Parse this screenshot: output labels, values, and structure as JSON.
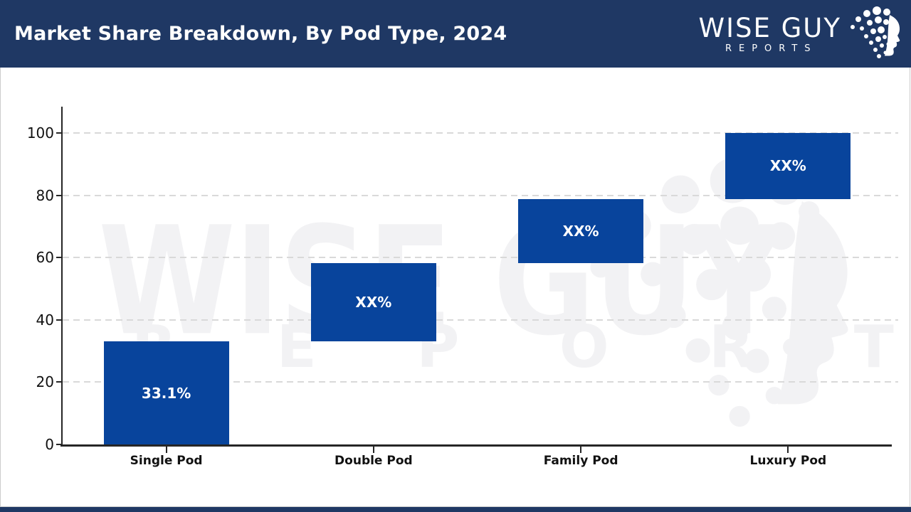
{
  "header": {
    "title": "Market Share Breakdown, By Pod Type, 2024",
    "bg_color": "#1f3864",
    "logo": {
      "line1": "WISE GUY",
      "line2": "REPORTS"
    }
  },
  "watermark": {
    "line1": "WISE GUY",
    "line2": "R E P O R T S"
  },
  "chart_data": {
    "type": "bar",
    "subtype": "waterfall",
    "title": "Market Share Breakdown, By Pod Type, 2024",
    "xlabel": "",
    "ylabel": "",
    "categories": [
      "Single Pod",
      "Double Pod",
      "Family Pod",
      "Luxury Pod"
    ],
    "segments": [
      {
        "category": "Single Pod",
        "start": 0,
        "end": 33.1,
        "label": "33.1%"
      },
      {
        "category": "Double Pod",
        "start": 33.1,
        "end": 58.2,
        "label": "XX%"
      },
      {
        "category": "Family Pod",
        "start": 58.2,
        "end": 78.8,
        "label": "XX%"
      },
      {
        "category": "Luxury Pod",
        "start": 78.8,
        "end": 100,
        "label": "XX%"
      }
    ],
    "yticks": [
      0,
      20,
      40,
      60,
      80,
      100
    ],
    "ylim": [
      0,
      108
    ],
    "grid": "dashed-horizontal",
    "legend": "none",
    "bar_color": "#08449c",
    "bar_label_color": "#ffffff",
    "grid_color": "#d9d9d9",
    "axis_color": "#262626"
  }
}
